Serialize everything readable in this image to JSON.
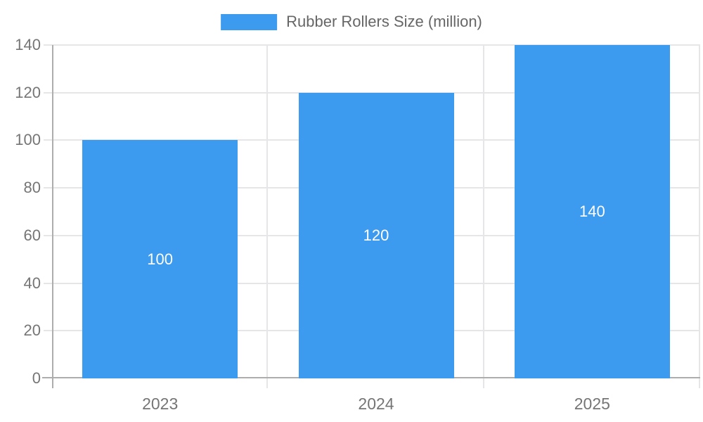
{
  "legend": {
    "label": "Rubber Rollers Size (million)"
  },
  "chart_data": {
    "type": "bar",
    "title": "",
    "xlabel": "",
    "ylabel": "",
    "categories": [
      "2023",
      "2024",
      "2025"
    ],
    "series": [
      {
        "name": "Rubber Rollers Size (million)",
        "values": [
          100,
          120,
          140
        ]
      }
    ],
    "values": [
      100,
      120,
      140
    ],
    "data_labels": [
      "100",
      "120",
      "140"
    ],
    "ylim": [
      0,
      140
    ],
    "ytick_step": 20,
    "yticks": [
      0,
      20,
      40,
      60,
      80,
      100,
      120,
      140
    ],
    "grid": true,
    "legend_position": "top",
    "colors": {
      "bar": "#3c9aef",
      "data_label": "#ffffff",
      "grid": "#e6e6e8",
      "axis_line": "#adadad",
      "tick_label": "#757575",
      "legend_text": "#666666",
      "background": "#ffffff"
    }
  }
}
